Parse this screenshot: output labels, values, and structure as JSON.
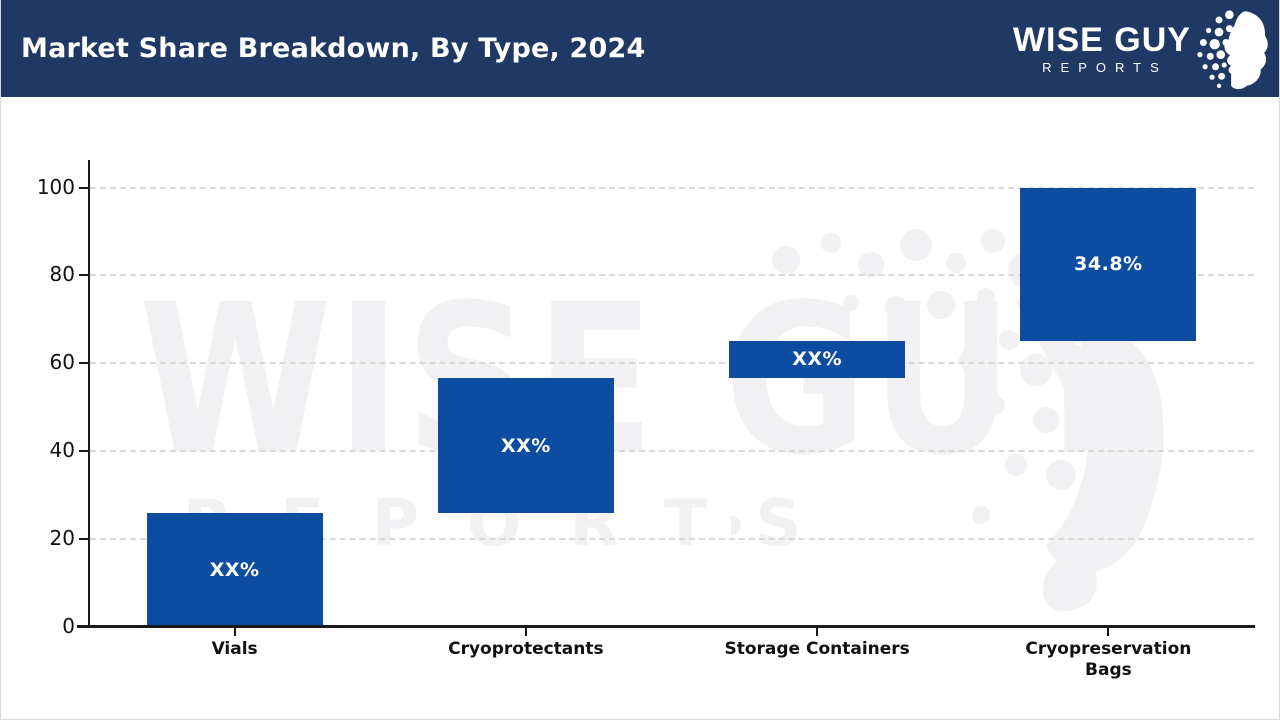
{
  "header": {
    "title": "Market Share Breakdown, By Type, 2024",
    "logo": {
      "line1": "WISE GUY",
      "line2": "REPORTS"
    }
  },
  "watermark": {
    "line1": "WISE GUY",
    "line2": "REPORTS"
  },
  "chart_data": {
    "type": "bar",
    "subtype": "floating-waterfall",
    "title": "Market Share Breakdown, By Type, 2024",
    "categories": [
      "Vials",
      "Cryoprotectants",
      "Storage Containers",
      "Cryopreservation Bags"
    ],
    "tick_labels": [
      "Vials",
      "Cryoprotectants",
      "Storage Containers",
      "Cryopreservation\nBags"
    ],
    "bars": [
      {
        "category": "Vials",
        "start": 0,
        "end": 26,
        "value": 26,
        "label": "XX%"
      },
      {
        "category": "Cryoprotectants",
        "start": 26,
        "end": 56.6,
        "value": 30.6,
        "label": "XX%"
      },
      {
        "category": "Storage Containers",
        "start": 56.6,
        "end": 65.2,
        "value": 8.6,
        "label": "XX%"
      },
      {
        "category": "Cryopreservation Bags",
        "start": 65.2,
        "end": 100,
        "value": 34.8,
        "label": "34.8%"
      }
    ],
    "yticks": [
      0,
      20,
      40,
      60,
      80,
      100
    ],
    "ylim": [
      0,
      100
    ],
    "xlabel": "",
    "ylabel": "",
    "legend": null,
    "grid": "horizontal-dashed",
    "colors": {
      "bar": "#0c4da2",
      "bar_label": "#ffffff",
      "axis": "#1a1a1a",
      "gridline": "#d9d9d9",
      "header_bg": "#203864",
      "header_text": "#ffffff",
      "watermark": "#f1f1f3"
    }
  }
}
